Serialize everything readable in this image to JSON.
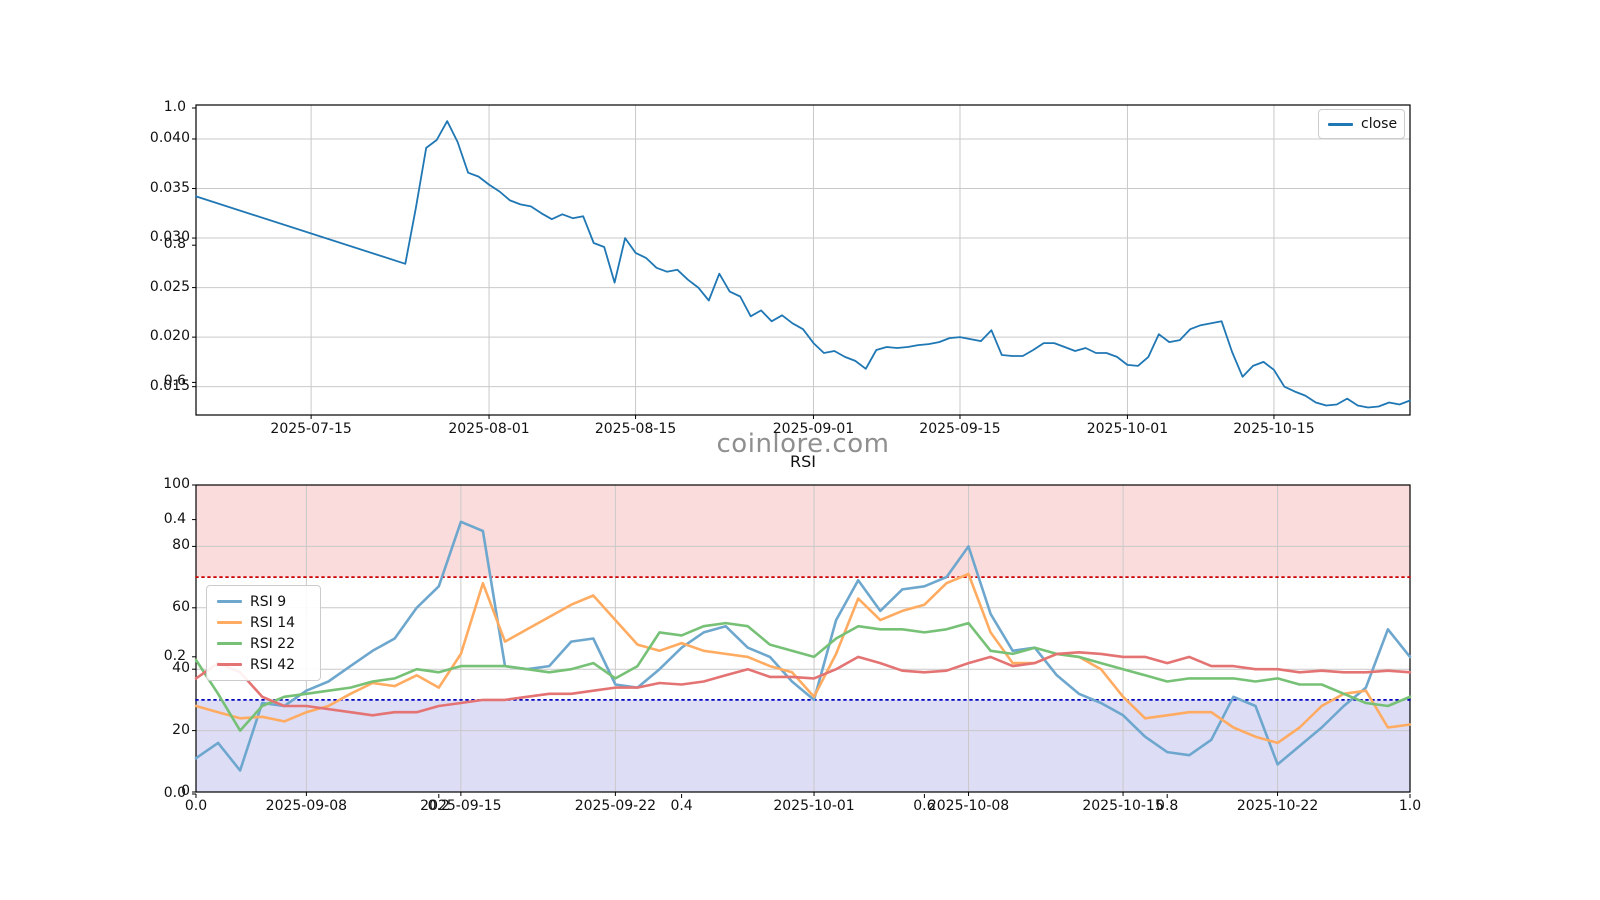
{
  "watermark": "coinlore.com",
  "overlay_axis": {
    "comment_colors": {
      "tick_color": "#111111"
    },
    "x_tick_labels": [
      "0.0",
      "0.2",
      "0.4",
      "0.6",
      "0.8",
      "1.0"
    ],
    "y_tick_labels": [
      "0.0",
      "0.2",
      "0.4",
      "0.6",
      "0.8",
      "1.0"
    ]
  },
  "chart_data": [
    {
      "type": "line",
      "name": "price",
      "title": "",
      "legend_position": "upper right",
      "grid": true,
      "x_domain": [
        "2025-07-04",
        "2025-10-28"
      ],
      "ylim": [
        0.01214,
        0.04343
      ],
      "y_ticks": [
        {
          "label": "0.040",
          "value": 0.04
        },
        {
          "label": "0.035",
          "value": 0.035
        },
        {
          "label": "0.030",
          "value": 0.03
        },
        {
          "label": "0.025",
          "value": 0.025
        },
        {
          "label": "0.020",
          "value": 0.02
        },
        {
          "label": "0.015",
          "value": 0.015
        }
      ],
      "x_ticks": [
        {
          "label": "2025-07-15",
          "date": "2025-07-15"
        },
        {
          "label": "2025-08-01",
          "date": "2025-08-01"
        },
        {
          "label": "2025-08-15",
          "date": "2025-08-15"
        },
        {
          "label": "2025-09-01",
          "date": "2025-09-01"
        },
        {
          "label": "2025-09-15",
          "date": "2025-09-15"
        },
        {
          "label": "2025-10-01",
          "date": "2025-10-01"
        },
        {
          "label": "2025-10-15",
          "date": "2025-10-15"
        }
      ],
      "series": [
        {
          "name": "close",
          "color": "#1f77b4",
          "width": 1.8,
          "points": [
            [
              "2025-07-04",
              0.0342
            ],
            [
              "2025-07-24",
              0.0274
            ],
            [
              "2025-07-25",
              0.033
            ],
            [
              "2025-07-26",
              0.0391
            ],
            [
              "2025-07-27",
              0.0399
            ],
            [
              "2025-07-28",
              0.0418
            ],
            [
              "2025-07-29",
              0.0397
            ],
            [
              "2025-07-30",
              0.0366
            ],
            [
              "2025-07-31",
              0.0362
            ],
            [
              "2025-08-01",
              0.0354
            ],
            [
              "2025-08-02",
              0.0347
            ],
            [
              "2025-08-03",
              0.0338
            ],
            [
              "2025-08-04",
              0.0334
            ],
            [
              "2025-08-05",
              0.0332
            ],
            [
              "2025-08-06",
              0.0325
            ],
            [
              "2025-08-07",
              0.0319
            ],
            [
              "2025-08-08",
              0.0324
            ],
            [
              "2025-08-09",
              0.032
            ],
            [
              "2025-08-10",
              0.0322
            ],
            [
              "2025-08-11",
              0.0295
            ],
            [
              "2025-08-12",
              0.0291
            ],
            [
              "2025-08-13",
              0.0255
            ],
            [
              "2025-08-14",
              0.03
            ],
            [
              "2025-08-15",
              0.0285
            ],
            [
              "2025-08-16",
              0.028
            ],
            [
              "2025-08-17",
              0.027
            ],
            [
              "2025-08-18",
              0.0266
            ],
            [
              "2025-08-19",
              0.0268
            ],
            [
              "2025-08-20",
              0.0258
            ],
            [
              "2025-08-21",
              0.025
            ],
            [
              "2025-08-22",
              0.0237
            ],
            [
              "2025-08-23",
              0.0264
            ],
            [
              "2025-08-24",
              0.0246
            ],
            [
              "2025-08-25",
              0.0241
            ],
            [
              "2025-08-26",
              0.0221
            ],
            [
              "2025-08-27",
              0.0227
            ],
            [
              "2025-08-28",
              0.0216
            ],
            [
              "2025-08-29",
              0.0222
            ],
            [
              "2025-08-30",
              0.0214
            ],
            [
              "2025-08-31",
              0.0208
            ],
            [
              "2025-09-01",
              0.0194
            ],
            [
              "2025-09-02",
              0.0184
            ],
            [
              "2025-09-03",
              0.0186
            ],
            [
              "2025-09-04",
              0.018
            ],
            [
              "2025-09-05",
              0.0176
            ],
            [
              "2025-09-06",
              0.0168
            ],
            [
              "2025-09-07",
              0.0187
            ],
            [
              "2025-09-08",
              0.019
            ],
            [
              "2025-09-09",
              0.0189
            ],
            [
              "2025-09-10",
              0.019
            ],
            [
              "2025-09-11",
              0.0192
            ],
            [
              "2025-09-12",
              0.0193
            ],
            [
              "2025-09-13",
              0.0195
            ],
            [
              "2025-09-14",
              0.0199
            ],
            [
              "2025-09-15",
              0.02
            ],
            [
              "2025-09-16",
              0.0198
            ],
            [
              "2025-09-17",
              0.0196
            ],
            [
              "2025-09-18",
              0.0207
            ],
            [
              "2025-09-19",
              0.0182
            ],
            [
              "2025-09-20",
              0.0181
            ],
            [
              "2025-09-21",
              0.0181
            ],
            [
              "2025-09-22",
              0.0187
            ],
            [
              "2025-09-23",
              0.0194
            ],
            [
              "2025-09-24",
              0.0194
            ],
            [
              "2025-09-25",
              0.019
            ],
            [
              "2025-09-26",
              0.0186
            ],
            [
              "2025-09-27",
              0.0189
            ],
            [
              "2025-09-28",
              0.0184
            ],
            [
              "2025-09-29",
              0.0184
            ],
            [
              "2025-09-30",
              0.018
            ],
            [
              "2025-10-01",
              0.0172
            ],
            [
              "2025-10-02",
              0.0171
            ],
            [
              "2025-10-03",
              0.018
            ],
            [
              "2025-10-04",
              0.0203
            ],
            [
              "2025-10-05",
              0.0195
            ],
            [
              "2025-10-06",
              0.0197
            ],
            [
              "2025-10-07",
              0.0208
            ],
            [
              "2025-10-08",
              0.0212
            ],
            [
              "2025-10-09",
              0.0214
            ],
            [
              "2025-10-10",
              0.0216
            ],
            [
              "2025-10-11",
              0.0185
            ],
            [
              "2025-10-12",
              0.016
            ],
            [
              "2025-10-13",
              0.0171
            ],
            [
              "2025-10-14",
              0.0175
            ],
            [
              "2025-10-15",
              0.0167
            ],
            [
              "2025-10-16",
              0.015
            ],
            [
              "2025-10-17",
              0.0145
            ],
            [
              "2025-10-18",
              0.0141
            ],
            [
              "2025-10-19",
              0.0134
            ],
            [
              "2025-10-20",
              0.0131
            ],
            [
              "2025-10-21",
              0.0132
            ],
            [
              "2025-10-22",
              0.0138
            ],
            [
              "2025-10-23",
              0.0131
            ],
            [
              "2025-10-24",
              0.0129
            ],
            [
              "2025-10-25",
              0.013
            ],
            [
              "2025-10-26",
              0.0134
            ],
            [
              "2025-10-27",
              0.0132
            ],
            [
              "2025-10-28",
              0.0136
            ]
          ]
        }
      ]
    },
    {
      "type": "line",
      "name": "rsi",
      "title": "RSI",
      "legend_position": "center left",
      "grid": true,
      "x_domain": [
        "2025-09-03",
        "2025-10-28"
      ],
      "dates_start": "2025-09-03",
      "dates_freq": "daily",
      "ylim": [
        0,
        100
      ],
      "overbought": {
        "value": 70,
        "line_color": "#cc0000",
        "band_color": "#fbdcdc"
      },
      "oversold": {
        "value": 30,
        "line_color": "#0000bb",
        "band_color": "#deddf6"
      },
      "y_ticks": [
        {
          "label": "100",
          "value": 100
        },
        {
          "label": "80",
          "value": 80
        },
        {
          "label": "60",
          "value": 60
        },
        {
          "label": "40",
          "value": 40
        },
        {
          "label": "20",
          "value": 20
        },
        {
          "label": "0",
          "value": 0
        }
      ],
      "x_ticks": [
        {
          "label": "2025-09-08",
          "date": "2025-09-08"
        },
        {
          "label": "2025-09-15",
          "date": "2025-09-15"
        },
        {
          "label": "2025-09-22",
          "date": "2025-09-22"
        },
        {
          "label": "2025-10-01",
          "date": "2025-10-01"
        },
        {
          "label": "2025-10-08",
          "date": "2025-10-08"
        },
        {
          "label": "2025-10-15",
          "date": "2025-10-15"
        },
        {
          "label": "2025-10-22",
          "date": "2025-10-22"
        }
      ],
      "series": [
        {
          "name": "RSI 9",
          "color": "#6ea7ce",
          "width": 2.6,
          "values": [
            11,
            16,
            7,
            29,
            28,
            33,
            36,
            41,
            46,
            50,
            60,
            67,
            88,
            85,
            41,
            40,
            41,
            49,
            50,
            35,
            34,
            40,
            47,
            52,
            54,
            47,
            44,
            36,
            30,
            56,
            69,
            59,
            66,
            67,
            70,
            80,
            58,
            46,
            47,
            38,
            32,
            29,
            25,
            18,
            13,
            12,
            17,
            31,
            28,
            9,
            15,
            21,
            28,
            34,
            53,
            44
          ]
        },
        {
          "name": "RSI 14",
          "color": "#ffac62",
          "width": 2.6,
          "values": [
            28,
            26,
            24,
            24.5,
            23,
            26,
            28,
            32,
            35.5,
            34.5,
            38,
            34,
            45,
            68,
            49,
            53,
            57,
            61,
            64,
            56,
            48,
            46,
            48.5,
            46,
            45,
            44,
            41,
            39,
            31,
            45,
            63,
            56,
            59,
            61,
            68,
            71,
            52,
            42,
            42,
            45,
            44,
            40,
            31,
            24,
            25,
            26,
            26,
            21,
            18,
            16,
            21,
            28,
            32,
            33,
            21,
            22
          ]
        },
        {
          "name": "RSI 22",
          "color": "#76c176",
          "width": 2.6,
          "values": [
            43,
            32,
            20,
            28,
            31,
            32,
            33,
            34,
            36,
            37,
            40,
            39,
            41,
            41,
            41,
            40,
            39,
            40,
            42,
            37,
            41,
            52,
            51,
            54,
            55,
            54,
            48,
            46,
            44,
            50,
            54,
            53,
            53,
            52,
            53,
            55,
            46,
            45,
            47,
            45,
            44,
            42,
            40,
            38,
            36,
            37,
            37,
            37,
            36,
            37,
            35,
            35,
            32,
            29,
            28,
            31
          ]
        },
        {
          "name": "RSI 42",
          "color": "#e47373",
          "width": 2.6,
          "values": [
            37,
            42,
            39,
            31,
            28,
            28,
            27,
            26,
            25,
            26,
            26,
            28,
            29,
            30,
            30,
            31,
            32,
            32,
            33,
            34,
            34,
            35.5,
            35,
            36,
            38,
            40,
            37.5,
            37.5,
            37,
            40,
            44,
            42,
            39.5,
            39,
            39.5,
            42,
            44,
            41,
            42,
            45,
            45.5,
            45,
            44,
            44,
            42,
            44,
            41,
            41,
            40,
            40,
            39,
            39.5,
            39,
            39,
            39.5,
            39
          ]
        }
      ]
    }
  ]
}
